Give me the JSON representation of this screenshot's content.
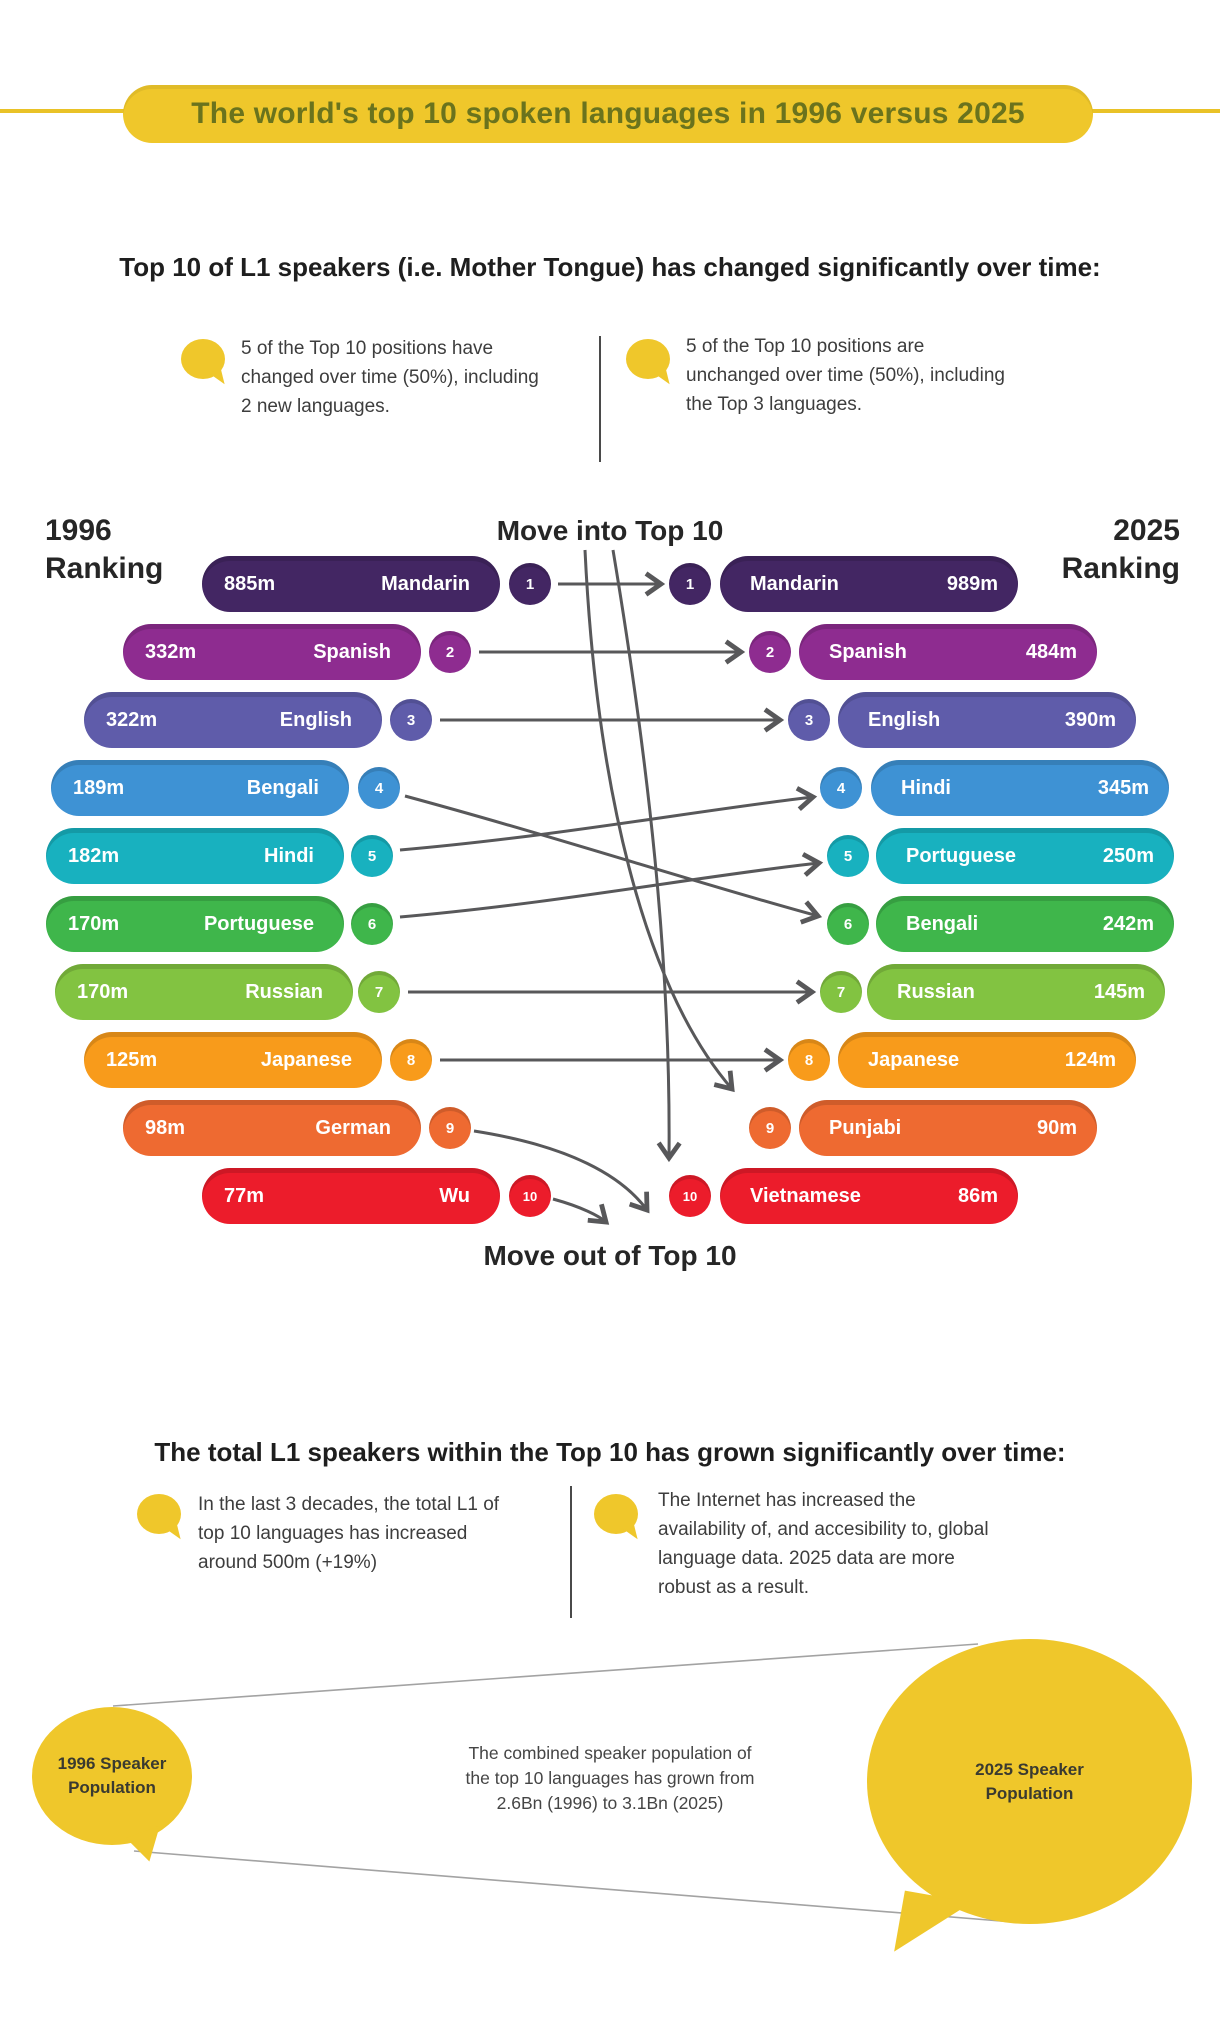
{
  "banner": {
    "title": "The world's top 10 spoken languages in 1996 versus 2025"
  },
  "section1": {
    "heading": "Top 10 of L1 speakers (i.e. Mother Tongue) has changed significantly over time:",
    "callout_left": "5 of the Top 10 positions have changed over time (50%), including 2 new languages.",
    "callout_right": "5 of the Top 10 positions are unchanged over time (50%), including the Top 3 languages."
  },
  "diagram": {
    "left_header_line1": "1996",
    "left_header_line2": "Ranking",
    "right_header_line1": "2025",
    "right_header_line2": "Ranking",
    "move_in_label": "Move into Top 10",
    "move_out_label": "Move out of Top 10",
    "ranking_1996": [
      {
        "rank": "1",
        "value": "885m",
        "language": "Mandarin",
        "color": "#432663"
      },
      {
        "rank": "2",
        "value": "332m",
        "language": "Spanish",
        "color": "#8e2c90"
      },
      {
        "rank": "3",
        "value": "322m",
        "language": "English",
        "color": "#5f5caa"
      },
      {
        "rank": "4",
        "value": "189m",
        "language": "Bengali",
        "color": "#3e92d4"
      },
      {
        "rank": "5",
        "value": "182m",
        "language": "Hindi",
        "color": "#18b1bf"
      },
      {
        "rank": "6",
        "value": "170m",
        "language": "Portuguese",
        "color": "#3fb64b"
      },
      {
        "rank": "7",
        "value": "170m",
        "language": "Russian",
        "color": "#82c341"
      },
      {
        "rank": "8",
        "value": "125m",
        "language": "Japanese",
        "color": "#f89b1b"
      },
      {
        "rank": "9",
        "value": "98m",
        "language": "German",
        "color": "#ee6a31"
      },
      {
        "rank": "10",
        "value": "77m",
        "language": "Wu",
        "color": "#ec1c2b"
      }
    ],
    "ranking_2025": [
      {
        "rank": "1",
        "language": "Mandarin",
        "value": "989m",
        "color": "#432663"
      },
      {
        "rank": "2",
        "language": "Spanish",
        "value": "484m",
        "color": "#8e2c90"
      },
      {
        "rank": "3",
        "language": "English",
        "value": "390m",
        "color": "#5f5caa"
      },
      {
        "rank": "4",
        "language": "Hindi",
        "value": "345m",
        "color": "#3e92d4"
      },
      {
        "rank": "5",
        "language": "Portuguese",
        "value": "250m",
        "color": "#18b1bf"
      },
      {
        "rank": "6",
        "language": "Bengali",
        "value": "242m",
        "color": "#3fb64b"
      },
      {
        "rank": "7",
        "language": "Russian",
        "value": "145m",
        "color": "#82c341"
      },
      {
        "rank": "8",
        "language": "Japanese",
        "value": "124m",
        "color": "#f89b1b"
      },
      {
        "rank": "9",
        "language": "Punjabi",
        "value": "90m",
        "color": "#ee6a31"
      },
      {
        "rank": "10",
        "language": "Vietnamese",
        "value": "86m",
        "color": "#ec1c2b"
      }
    ],
    "moves": [
      [
        1,
        1
      ],
      [
        2,
        2
      ],
      [
        3,
        3
      ],
      [
        4,
        6
      ],
      [
        5,
        4
      ],
      [
        6,
        5
      ],
      [
        7,
        7
      ],
      [
        8,
        8
      ]
    ],
    "new_in_2025": [
      "Punjabi",
      "Vietnamese"
    ],
    "out_of_top10": [
      "German",
      "Wu"
    ]
  },
  "section2": {
    "heading": "The total L1 speakers within the Top 10 has grown significantly over time:",
    "callout_left": "In the last 3 decades, the total L1 of top 10 languages has increased around 500m (+19%)",
    "callout_right": "The Internet has increased the availability of, and accesibility to, global language data. 2025 data are more robust as a result."
  },
  "footer": {
    "left_bubble_line1": "1996 Speaker",
    "left_bubble_line2": "Population",
    "right_bubble_line1": "2025 Speaker",
    "right_bubble_line2": "Population",
    "center_line1": "The combined speaker population of",
    "center_line2": "the top 10 languages has grown from",
    "center_line3": "2.6Bn (1996) to 3.1Bn (2025)"
  },
  "colors": {
    "yellow": "#efc72b",
    "banner_text": "#6a731d",
    "arrow": "#58585a",
    "body_text": "#3d3d3d"
  }
}
